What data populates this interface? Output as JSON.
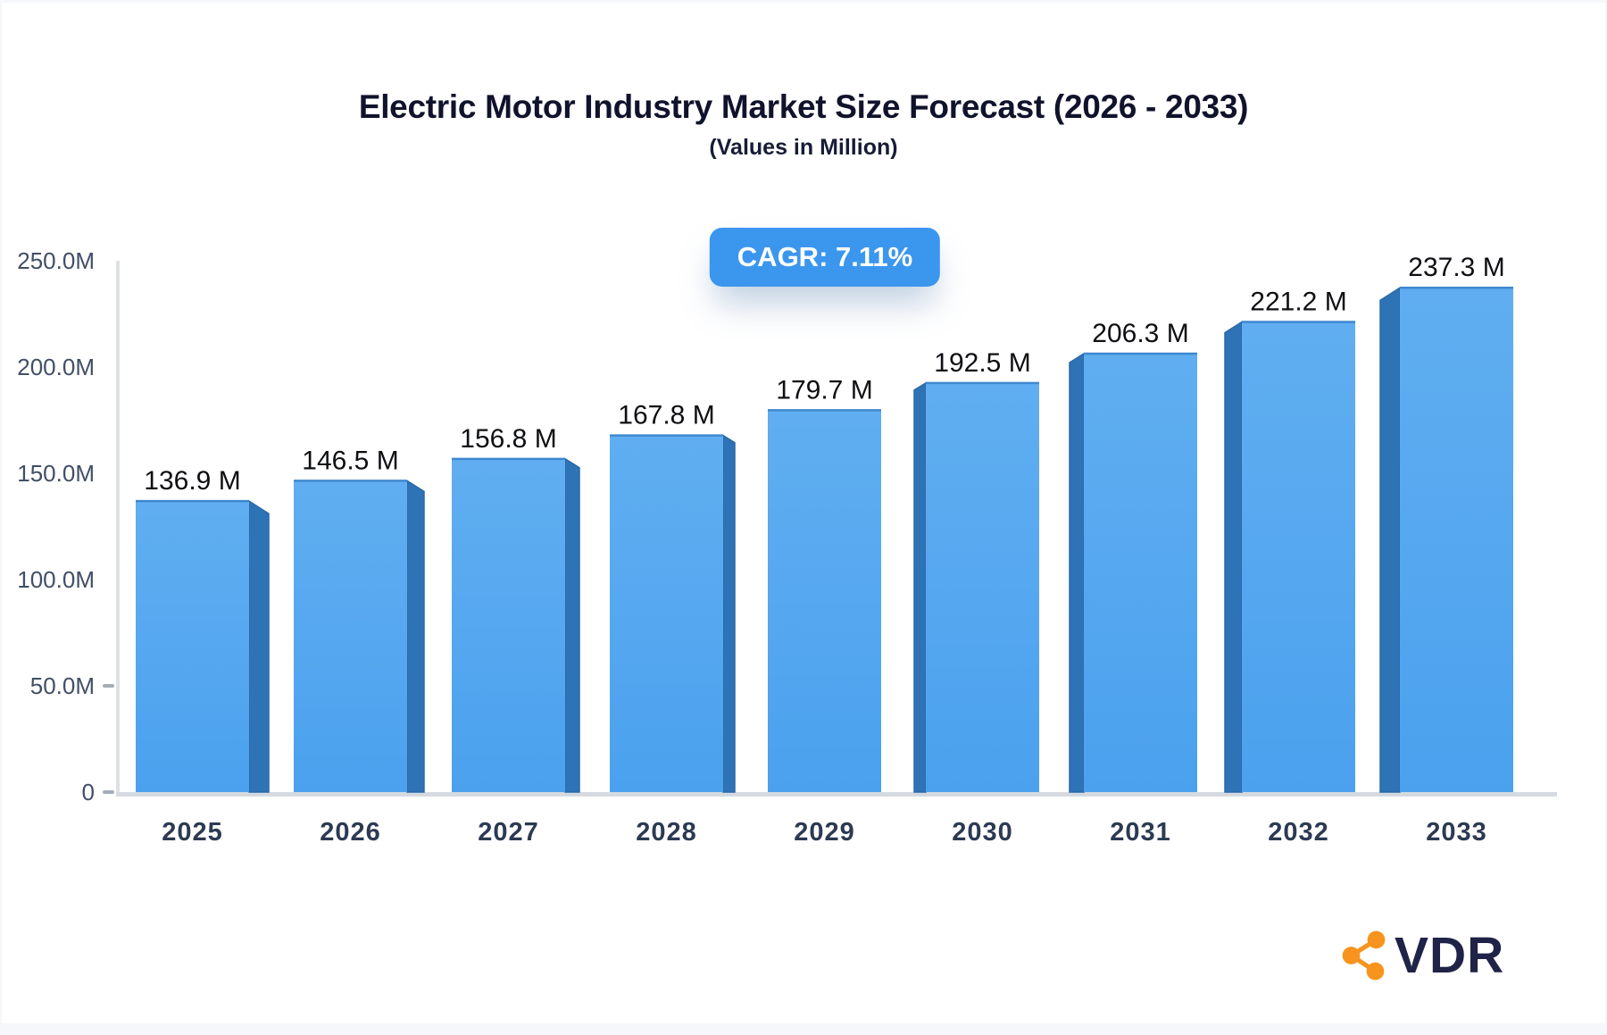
{
  "chart_data": {
    "type": "bar",
    "title": "Electric Motor Industry Market Size Forecast (2026 - 2033)",
    "subtitle": "(Values in Million)",
    "cagr_label": "CAGR: 7.11%",
    "categories": [
      "2025",
      "2026",
      "2027",
      "2028",
      "2029",
      "2030",
      "2031",
      "2032",
      "2033"
    ],
    "values": [
      136.9,
      146.5,
      156.8,
      167.8,
      179.7,
      192.5,
      206.3,
      221.2,
      237.3
    ],
    "value_labels": [
      "136.9 M",
      "146.5 M",
      "156.8 M",
      "167.8 M",
      "179.7 M",
      "192.5 M",
      "206.3 M",
      "221.2 M",
      "237.3 M"
    ],
    "unit": "M",
    "xlabel": "",
    "ylabel": "",
    "ylim": [
      0,
      250
    ],
    "y_ticks": [
      {
        "label": "250.0M",
        "value": 250,
        "dash": false
      },
      {
        "label": "200.0M",
        "value": 200,
        "dash": false
      },
      {
        "label": "150.0M",
        "value": 150,
        "dash": false
      },
      {
        "label": "100.0M",
        "value": 100,
        "dash": false
      },
      {
        "label": "50.0M",
        "value": 50,
        "dash": true
      },
      {
        "label": "0",
        "value": 0,
        "dash": true
      }
    ],
    "grid": false,
    "legend": false,
    "style": {
      "bar_face_top": "#60aef1",
      "bar_face_bottom": "#4ba1ee",
      "bar_side": "#2e73b5",
      "bar_side_edge": "#2b69a6",
      "bar_stroke": "#3f88d0",
      "axis_color": "#dde1e7",
      "baseline_color": "#d5dae1",
      "tick_mark_color": "#a6adb8",
      "badge_bg": "#3b96ee",
      "badge_text": "#ffffff"
    }
  },
  "brand": {
    "name": "VDR",
    "icon": "share-network-icon",
    "icon_color": "#f7941e",
    "text_color": "#1f2347"
  }
}
